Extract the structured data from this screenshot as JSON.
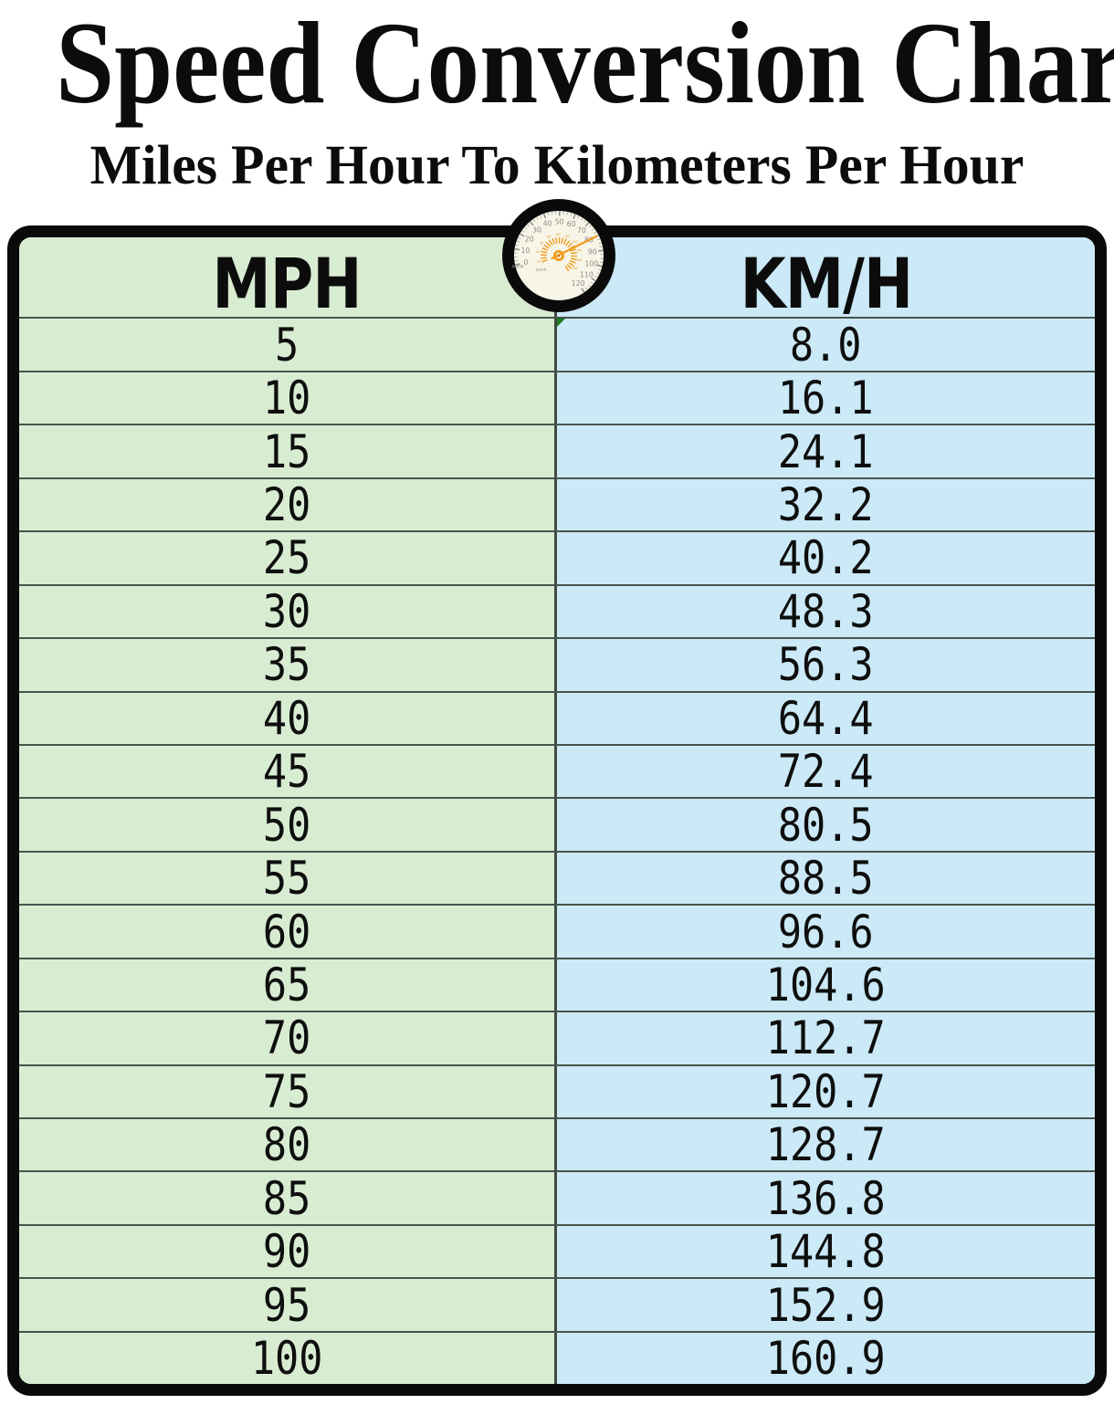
{
  "page": {
    "title": "Speed Conversion Chart",
    "subtitle": "Miles Per Hour To Kilometers Per Hour"
  },
  "table": {
    "columns": [
      {
        "label": "MPH"
      },
      {
        "label": "KM/H"
      }
    ],
    "rows": [
      {
        "mph": "5",
        "kmh": "8.0"
      },
      {
        "mph": "10",
        "kmh": "16.1"
      },
      {
        "mph": "15",
        "kmh": "24.1"
      },
      {
        "mph": "20",
        "kmh": "32.2"
      },
      {
        "mph": "25",
        "kmh": "40.2"
      },
      {
        "mph": "30",
        "kmh": "48.3"
      },
      {
        "mph": "35",
        "kmh": "56.3"
      },
      {
        "mph": "40",
        "kmh": "64.4"
      },
      {
        "mph": "45",
        "kmh": "72.4"
      },
      {
        "mph": "50",
        "kmh": "80.5"
      },
      {
        "mph": "55",
        "kmh": "88.5"
      },
      {
        "mph": "60",
        "kmh": "96.6"
      },
      {
        "mph": "65",
        "kmh": "104.6"
      },
      {
        "mph": "70",
        "kmh": "112.7"
      },
      {
        "mph": "75",
        "kmh": "120.7"
      },
      {
        "mph": "80",
        "kmh": "128.7"
      },
      {
        "mph": "85",
        "kmh": "136.8"
      },
      {
        "mph": "90",
        "kmh": "144.8"
      },
      {
        "mph": "95",
        "kmh": "152.9"
      },
      {
        "mph": "100",
        "kmh": "160.9"
      }
    ]
  },
  "speedometer": {
    "dial_numbers": [
      "0",
      "10",
      "20",
      "30",
      "40",
      "50",
      "60",
      "70",
      "80",
      "90",
      "100",
      "110",
      "120"
    ],
    "outer_unit": "MPH",
    "inner_unit": "km/h",
    "inner_numbers": [
      "20",
      "40",
      "60",
      "80",
      "100",
      "120",
      "140",
      "160",
      "180",
      "200"
    ],
    "needle_value_mph": 80
  },
  "colors": {
    "mph_column_green": "#d8ecd2",
    "kmh_column_blue": "#cbe9f7",
    "table_border_black": "#0a0a0a",
    "grid_line": "#47544b",
    "gauge_face_cream": "#f7f5e8",
    "gauge_gray": "#8b8b83",
    "gauge_orange": "#f09c1e",
    "corner_flag_green": "#1c7c1c"
  },
  "chart_data": {
    "type": "table",
    "title": "Speed Conversion Chart",
    "subtitle": "Miles Per Hour To Kilometers Per Hour",
    "columns": [
      "MPH",
      "KM/H"
    ],
    "rows": [
      [
        5,
        8.0
      ],
      [
        10,
        16.1
      ],
      [
        15,
        24.1
      ],
      [
        20,
        32.2
      ],
      [
        25,
        40.2
      ],
      [
        30,
        48.3
      ],
      [
        35,
        56.3
      ],
      [
        40,
        64.4
      ],
      [
        45,
        72.4
      ],
      [
        50,
        80.5
      ],
      [
        55,
        88.5
      ],
      [
        60,
        96.6
      ],
      [
        65,
        104.6
      ],
      [
        70,
        112.7
      ],
      [
        75,
        120.7
      ],
      [
        80,
        128.7
      ],
      [
        85,
        136.8
      ],
      [
        90,
        144.8
      ],
      [
        95,
        152.9
      ],
      [
        100,
        160.9
      ]
    ]
  }
}
